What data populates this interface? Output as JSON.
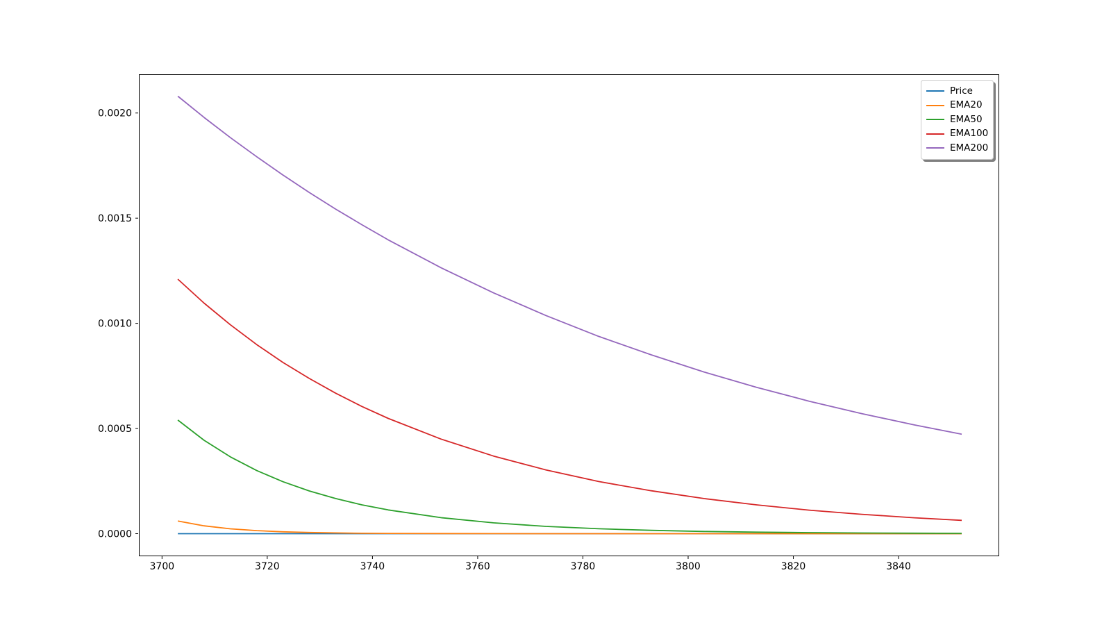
{
  "figure": {
    "background": "#ffffff",
    "frame_color": "#000000",
    "tick_color": "#000000",
    "legend_border_color": "#cccccc",
    "legend_shadow_color": "#7f7f7f"
  },
  "chart_data": {
    "type": "line",
    "title": "",
    "xlabel": "",
    "ylabel": "",
    "grid": false,
    "legend_position": "upper right",
    "xlim": [
      3695.6,
      3859.0
    ],
    "ylim": [
      -0.000104,
      0.002184
    ],
    "xticks": {
      "values": [
        3700,
        3720,
        3740,
        3760,
        3780,
        3800,
        3820,
        3840
      ],
      "labels": [
        "3700",
        "3720",
        "3740",
        "3760",
        "3780",
        "3800",
        "3820",
        "3840"
      ]
    },
    "yticks": {
      "values": [
        0.0,
        0.0005,
        0.001,
        0.0015,
        0.002
      ],
      "labels": [
        "0.0000",
        "0.0005",
        "0.0010",
        "0.0015",
        "0.0020"
      ]
    },
    "x": [
      3703,
      3708,
      3713,
      3718,
      3723,
      3728,
      3733,
      3738,
      3743,
      3753,
      3763,
      3773,
      3783,
      3793,
      3803,
      3813,
      3823,
      3833,
      3843,
      3852
    ],
    "series": [
      {
        "name": "Price",
        "color": "#1f77b4",
        "values": [
          0,
          0,
          0,
          0,
          0,
          0,
          0,
          0,
          0,
          0,
          0,
          0,
          0,
          0,
          0,
          0,
          0,
          0,
          0,
          0
        ]
      },
      {
        "name": "EMA20",
        "color": "#ff7f0e",
        "values": [
          6e-05,
          3.73e-05,
          2.32e-05,
          1.44e-05,
          8.9e-06,
          5.6e-06,
          3.5e-06,
          2.1e-06,
          1.3e-06,
          5e-07,
          2e-07,
          1e-07,
          5e-08,
          0,
          0,
          0,
          0,
          0,
          0,
          0
        ]
      },
      {
        "name": "EMA50",
        "color": "#2ca02c",
        "values": [
          0.00054,
          0.000444,
          0.000365,
          0.0003,
          0.000247,
          0.000203,
          0.000167,
          0.000137,
          0.000113,
          7.62e-05,
          5.15e-05,
          3.48e-05,
          2.35e-05,
          1.59e-05,
          1.07e-05,
          7.3e-06,
          4.9e-06,
          3.3e-06,
          2.2e-06,
          1.6e-06
        ]
      },
      {
        "name": "EMA100",
        "color": "#d62728",
        "values": [
          0.00121,
          0.001096,
          0.000993,
          0.000899,
          0.000814,
          0.000738,
          0.000668,
          0.000605,
          0.000548,
          0.00045,
          0.000369,
          0.000303,
          0.000248,
          0.000204,
          0.000167,
          0.000137,
          0.000112,
          9.22e-05,
          7.56e-05,
          6.34e-05
        ]
      },
      {
        "name": "EMA200",
        "color": "#9467bd",
        "values": [
          0.00208,
          0.001979,
          0.001883,
          0.001792,
          0.001705,
          0.001622,
          0.001543,
          0.001469,
          0.001397,
          0.001265,
          0.001145,
          0.001037,
          0.000938,
          0.00085,
          0.000769,
          0.000696,
          0.00063,
          0.000571,
          0.000517,
          0.000473
        ]
      }
    ],
    "legend_entries": [
      "Price",
      "EMA20",
      "EMA50",
      "EMA100",
      "EMA200"
    ]
  }
}
